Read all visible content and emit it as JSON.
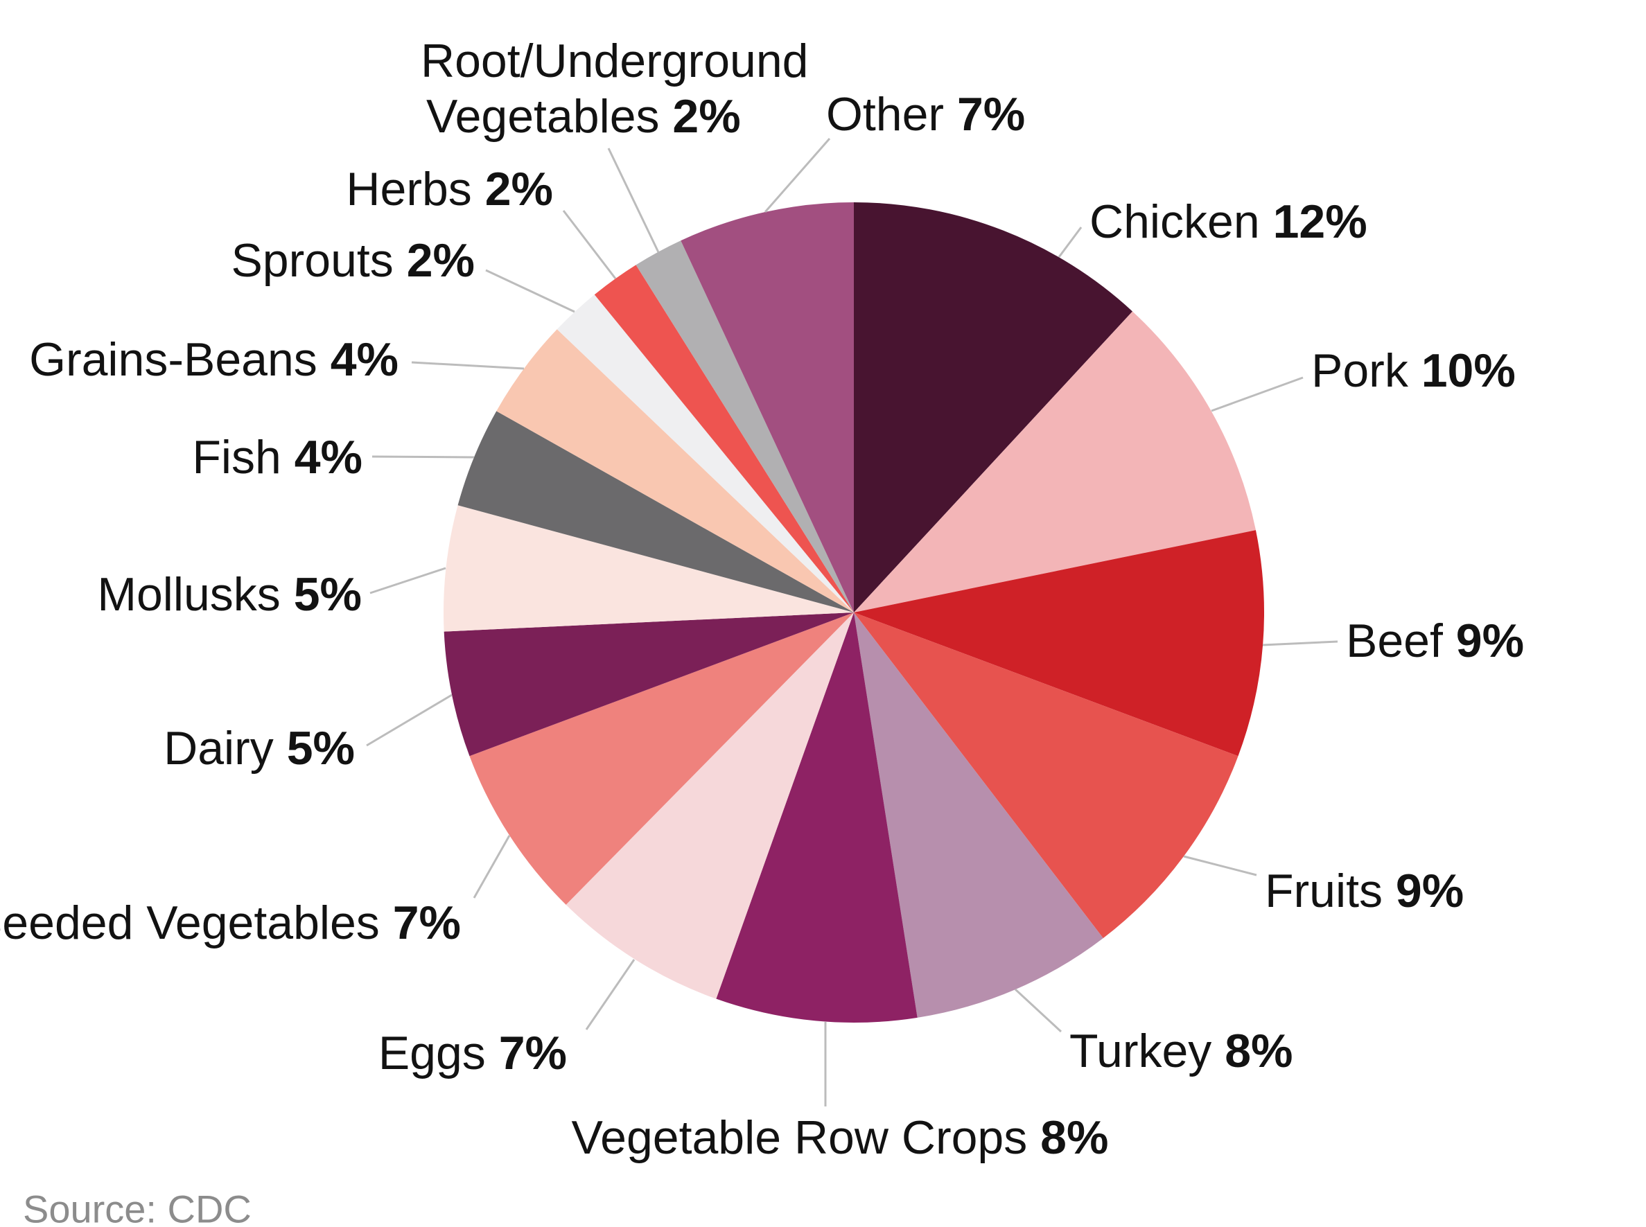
{
  "chart_data": {
    "type": "pie",
    "title": "",
    "source": "Source: CDC",
    "unit": "%",
    "direction": "clockwise",
    "start_angle_deg": 0,
    "legend_position": "outside-labels-with-leader-lines",
    "slices": [
      {
        "id": "chicken",
        "name": "Chicken",
        "name_lines": [
          "Chicken"
        ],
        "value": 12,
        "pct_label": "12%",
        "color": "#481430"
      },
      {
        "id": "pork",
        "name": "Pork",
        "name_lines": [
          "Pork"
        ],
        "value": 10,
        "pct_label": "10%",
        "color": "#f3b5b7"
      },
      {
        "id": "beef",
        "name": "Beef",
        "name_lines": [
          "Beef"
        ],
        "value": 9,
        "pct_label": "9%",
        "color": "#cf2127"
      },
      {
        "id": "fruits",
        "name": "Fruits",
        "name_lines": [
          "Fruits"
        ],
        "value": 9,
        "pct_label": "9%",
        "color": "#e7534f"
      },
      {
        "id": "turkey",
        "name": "Turkey",
        "name_lines": [
          "Turkey"
        ],
        "value": 8,
        "pct_label": "8%",
        "color": "#b78fad"
      },
      {
        "id": "vegetable-row-crops",
        "name": "Vegetable Row Crops",
        "name_lines": [
          "Vegetable Row Crops"
        ],
        "value": 8,
        "pct_label": "8%",
        "color": "#8e2264"
      },
      {
        "id": "eggs",
        "name": "Eggs",
        "name_lines": [
          "Eggs"
        ],
        "value": 7,
        "pct_label": "7%",
        "color": "#f6d8da"
      },
      {
        "id": "seeded-vegetables",
        "name": "Seeded Vegetables",
        "name_lines": [
          "Seeded Vegetables"
        ],
        "value": 7,
        "pct_label": "7%",
        "color": "#ef827d"
      },
      {
        "id": "dairy",
        "name": "Dairy",
        "name_lines": [
          "Dairy"
        ],
        "value": 5,
        "pct_label": "5%",
        "color": "#7b2057"
      },
      {
        "id": "mollusks",
        "name": "Mollusks",
        "name_lines": [
          "Mollusks"
        ],
        "value": 5,
        "pct_label": "5%",
        "color": "#fae4df"
      },
      {
        "id": "fish",
        "name": "Fish",
        "name_lines": [
          "Fish"
        ],
        "value": 4,
        "pct_label": "4%",
        "color": "#6b6a6c"
      },
      {
        "id": "grains-beans",
        "name": "Grains-Beans",
        "name_lines": [
          "Grains-Beans"
        ],
        "value": 4,
        "pct_label": "4%",
        "color": "#f9c7b1"
      },
      {
        "id": "sprouts",
        "name": "Sprouts",
        "name_lines": [
          "Sprouts"
        ],
        "value": 2,
        "pct_label": "2%",
        "color": "#efeff1"
      },
      {
        "id": "herbs",
        "name": "Herbs",
        "name_lines": [
          "Herbs"
        ],
        "value": 2,
        "pct_label": "2%",
        "color": "#ee5450"
      },
      {
        "id": "root-underground-vegetables",
        "name": "Root/Underground Vegetables",
        "name_lines": [
          "Root/Underground",
          "Vegetables"
        ],
        "value": 2,
        "pct_label": "2%",
        "color": "#b1b0b2"
      },
      {
        "id": "other",
        "name": "Other",
        "name_lines": [
          "Other"
        ],
        "value": 7,
        "pct_label": "7%",
        "color": "#a24f80"
      }
    ],
    "colors": {
      "label_text": "#121212",
      "leader_line": "#bcbcbc",
      "source_text": "#8c8c8c",
      "background": "#ffffff"
    }
  }
}
